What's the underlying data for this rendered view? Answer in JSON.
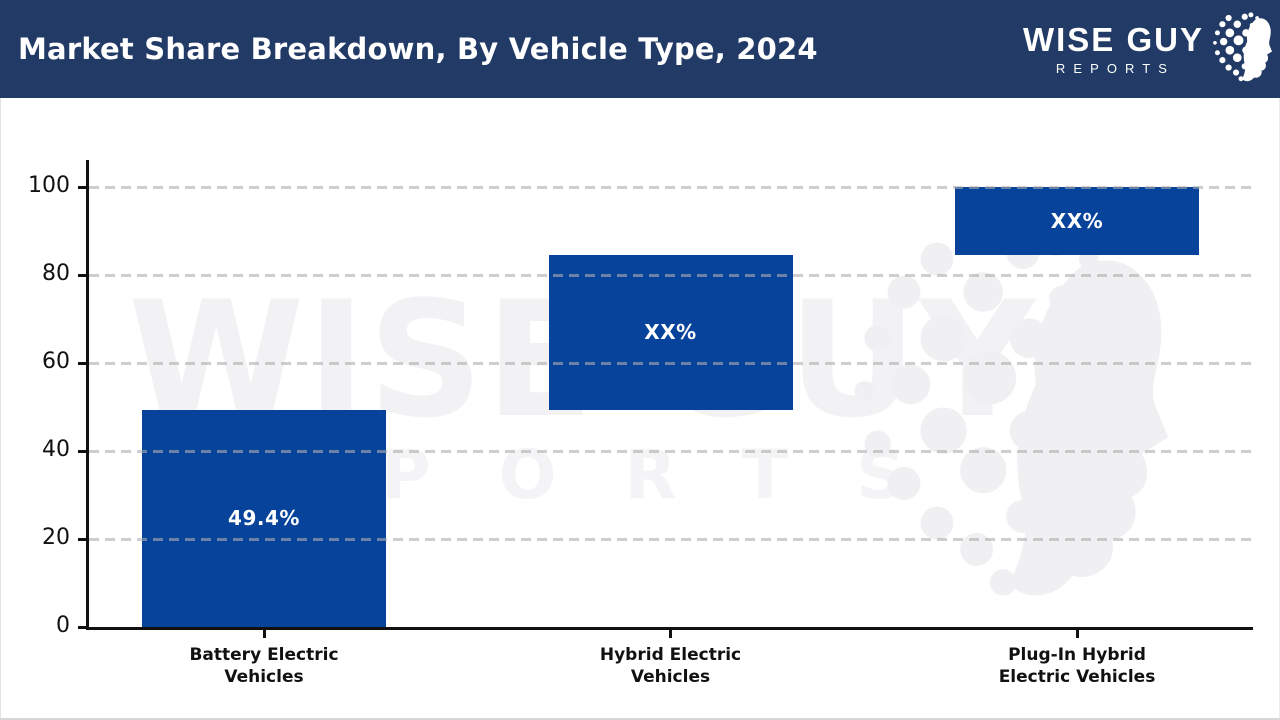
{
  "header": {
    "title": "Market Share Breakdown, By Vehicle Type, 2024",
    "logo": {
      "line1": "WISE GUY",
      "line2": "REPORTS"
    }
  },
  "watermark": {
    "line1": "WISE GUY",
    "line2": "REPORTS"
  },
  "chart_data": {
    "type": "bar",
    "subtype": "floating-segment-breakdown",
    "title": "Market Share Breakdown, By Vehicle Type, 2024",
    "unit": "%",
    "categories": [
      "Battery Electric Vehicles",
      "Hybrid Electric Vehicles",
      "Plug-In Hybrid Electric Vehicles"
    ],
    "bars": [
      {
        "id": "battery-electric-vehicles",
        "label_lines": [
          "Battery Electric",
          "Vehicles"
        ],
        "start": 0,
        "end": 49.4,
        "value_label": "49.4%"
      },
      {
        "id": "hybrid-electric-vehicles",
        "label_lines": [
          "Hybrid Electric",
          "Vehicles"
        ],
        "start": 49.4,
        "end": 84.6,
        "value_label": "XX%"
      },
      {
        "id": "plug-in-hybrid-electric-vehicles",
        "label_lines": [
          "Plug-In Hybrid",
          "Electric Vehicles"
        ],
        "start": 84.6,
        "end": 100,
        "value_label": "XX%"
      }
    ],
    "yticks": [
      0,
      20,
      40,
      60,
      80,
      100
    ],
    "ylim": [
      0,
      105.7
    ],
    "xlabel": "",
    "ylabel": "",
    "grid": "dashed-horizontal",
    "legend": "none",
    "colors": {
      "header_bg": "#213a66",
      "bar": "#07429b",
      "bar_label": "#ffffff",
      "axis": "#111111",
      "gridline": "rgba(173,173,173,0.6)",
      "title_text": "#ffffff",
      "watermark": "#f2f2f4"
    }
  }
}
